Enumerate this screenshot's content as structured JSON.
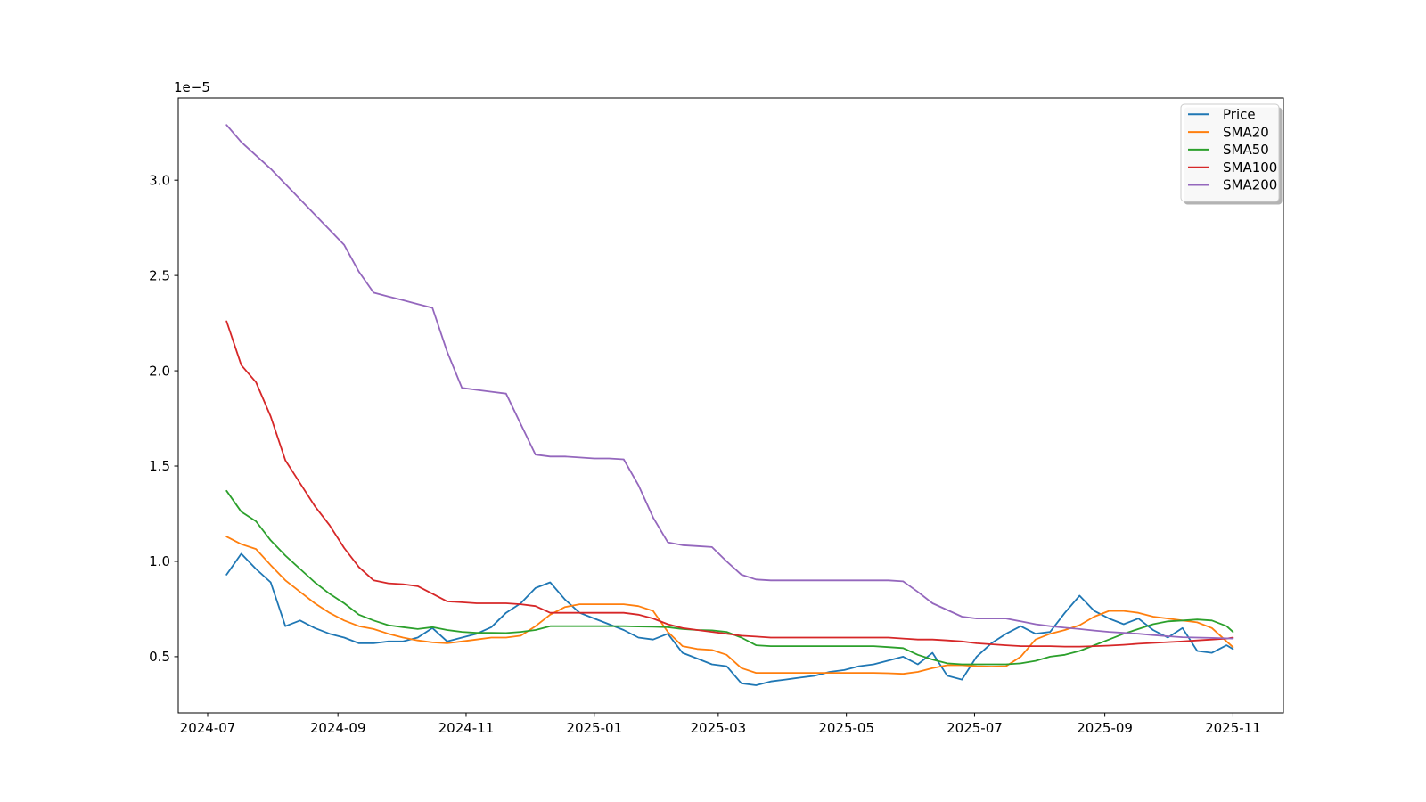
{
  "figure": {
    "background": "#ffffff",
    "axis_color": "#000000",
    "offset_label": "1e−5"
  },
  "legend": {
    "position": "upper right",
    "border_color": "#cccccc",
    "shadow_color": "#b3b3b3",
    "background": "#ffffff"
  },
  "chart_data": {
    "type": "line",
    "title": "",
    "xlabel": "",
    "ylabel": "",
    "grid": false,
    "y_offset_text": "1e−5",
    "ylim": [
      0.205,
      3.431
    ],
    "yticks": [
      0.5,
      1.0,
      1.5,
      2.0,
      2.5,
      3.0
    ],
    "ytick_labels": [
      "0.5",
      "1.0",
      "1.5",
      "2.0",
      "2.5",
      "3.0"
    ],
    "xlim": [
      "2024-06-17",
      "2025-11-25"
    ],
    "xticks": [
      {
        "label": "2024-07",
        "date": "2024-07-01"
      },
      {
        "label": "2024-09",
        "date": "2024-09-01"
      },
      {
        "label": "2024-11",
        "date": "2024-11-01"
      },
      {
        "label": "2025-01",
        "date": "2025-01-01"
      },
      {
        "label": "2025-03",
        "date": "2025-03-01"
      },
      {
        "label": "2025-05",
        "date": "2025-05-01"
      },
      {
        "label": "2025-07",
        "date": "2025-07-01"
      },
      {
        "label": "2025-09",
        "date": "2025-09-01"
      },
      {
        "label": "2025-11",
        "date": "2025-11-01"
      }
    ],
    "dates": [
      "2024-07-10",
      "2024-07-17",
      "2024-07-24",
      "2024-07-31",
      "2024-08-07",
      "2024-08-14",
      "2024-08-21",
      "2024-08-28",
      "2024-09-04",
      "2024-09-11",
      "2024-09-18",
      "2024-09-25",
      "2024-10-02",
      "2024-10-09",
      "2024-10-16",
      "2024-10-23",
      "2024-10-30",
      "2024-11-06",
      "2024-11-13",
      "2024-11-20",
      "2024-11-27",
      "2024-12-04",
      "2024-12-11",
      "2024-12-18",
      "2024-12-25",
      "2025-01-01",
      "2025-01-08",
      "2025-01-15",
      "2025-01-22",
      "2025-01-29",
      "2025-02-05",
      "2025-02-12",
      "2025-02-19",
      "2025-02-26",
      "2025-03-05",
      "2025-03-12",
      "2025-03-19",
      "2025-03-26",
      "2025-04-02",
      "2025-04-09",
      "2025-04-16",
      "2025-04-23",
      "2025-04-30",
      "2025-05-07",
      "2025-05-14",
      "2025-05-21",
      "2025-05-28",
      "2025-06-04",
      "2025-06-11",
      "2025-06-18",
      "2025-06-25",
      "2025-07-02",
      "2025-07-09",
      "2025-07-16",
      "2025-07-23",
      "2025-07-30",
      "2025-08-06",
      "2025-08-13",
      "2025-08-20",
      "2025-08-27",
      "2025-09-03",
      "2025-09-10",
      "2025-09-17",
      "2025-09-24",
      "2025-10-01",
      "2025-10-08",
      "2025-10-15",
      "2025-10-22",
      "2025-10-29",
      "2025-11-01"
    ],
    "value_scale_note": "values are in units of 1e-5, matching y tick labels",
    "series": [
      {
        "name": "Price",
        "color": "#1f77b4",
        "values": [
          0.93,
          1.04,
          0.96,
          0.89,
          0.66,
          0.69,
          0.65,
          0.62,
          0.6,
          0.57,
          0.57,
          0.58,
          0.58,
          0.6,
          0.65,
          0.58,
          0.6,
          0.62,
          0.655,
          0.73,
          0.78,
          0.86,
          0.89,
          0.8,
          0.73,
          0.7,
          0.67,
          0.64,
          0.6,
          0.59,
          0.62,
          0.52,
          0.49,
          0.46,
          0.45,
          0.36,
          0.35,
          0.37,
          0.38,
          0.39,
          0.4,
          0.42,
          0.43,
          0.45,
          0.46,
          0.48,
          0.5,
          0.46,
          0.52,
          0.4,
          0.38,
          0.5,
          0.57,
          0.62,
          0.66,
          0.62,
          0.63,
          0.73,
          0.82,
          0.74,
          0.7,
          0.67,
          0.7,
          0.64,
          0.6,
          0.65,
          0.53,
          0.52,
          0.56,
          0.54
        ]
      },
      {
        "name": "SMA20",
        "color": "#ff7f0e",
        "values": [
          1.13,
          1.09,
          1.065,
          0.98,
          0.9,
          0.84,
          0.78,
          0.73,
          0.69,
          0.66,
          0.645,
          0.62,
          0.6,
          0.585,
          0.575,
          0.57,
          0.58,
          0.59,
          0.6,
          0.6,
          0.61,
          0.66,
          0.72,
          0.76,
          0.775,
          0.775,
          0.775,
          0.775,
          0.765,
          0.74,
          0.63,
          0.555,
          0.54,
          0.535,
          0.51,
          0.44,
          0.415,
          0.415,
          0.415,
          0.415,
          0.415,
          0.415,
          0.415,
          0.415,
          0.415,
          0.413,
          0.41,
          0.42,
          0.44,
          0.455,
          0.455,
          0.45,
          0.448,
          0.45,
          0.5,
          0.59,
          0.62,
          0.64,
          0.665,
          0.71,
          0.74,
          0.74,
          0.73,
          0.71,
          0.7,
          0.69,
          0.68,
          0.65,
          0.58,
          0.55
        ]
      },
      {
        "name": "SMA50",
        "color": "#2ca02c",
        "values": [
          1.37,
          1.26,
          1.21,
          1.11,
          1.03,
          0.96,
          0.89,
          0.83,
          0.78,
          0.72,
          0.69,
          0.665,
          0.655,
          0.645,
          0.655,
          0.64,
          0.63,
          0.625,
          0.625,
          0.624,
          0.63,
          0.64,
          0.66,
          0.66,
          0.66,
          0.66,
          0.66,
          0.66,
          0.658,
          0.657,
          0.655,
          0.645,
          0.64,
          0.638,
          0.63,
          0.6,
          0.56,
          0.555,
          0.555,
          0.555,
          0.555,
          0.555,
          0.555,
          0.555,
          0.555,
          0.55,
          0.545,
          0.51,
          0.485,
          0.465,
          0.46,
          0.46,
          0.46,
          0.46,
          0.465,
          0.478,
          0.5,
          0.51,
          0.53,
          0.56,
          0.59,
          0.62,
          0.645,
          0.67,
          0.685,
          0.69,
          0.695,
          0.69,
          0.66,
          0.63
        ]
      },
      {
        "name": "SMA100",
        "color": "#d62728",
        "values": [
          2.26,
          2.03,
          1.94,
          1.76,
          1.53,
          1.41,
          1.29,
          1.19,
          1.07,
          0.97,
          0.9,
          0.885,
          0.88,
          0.87,
          0.83,
          0.79,
          0.785,
          0.78,
          0.78,
          0.78,
          0.775,
          0.765,
          0.73,
          0.73,
          0.73,
          0.73,
          0.73,
          0.73,
          0.72,
          0.7,
          0.67,
          0.65,
          0.64,
          0.63,
          0.62,
          0.61,
          0.605,
          0.6,
          0.6,
          0.6,
          0.6,
          0.6,
          0.6,
          0.6,
          0.6,
          0.6,
          0.595,
          0.59,
          0.59,
          0.585,
          0.58,
          0.57,
          0.565,
          0.56,
          0.555,
          0.555,
          0.555,
          0.553,
          0.553,
          0.555,
          0.558,
          0.562,
          0.568,
          0.572,
          0.576,
          0.58,
          0.585,
          0.59,
          0.595,
          0.6
        ]
      },
      {
        "name": "SMA200",
        "color": "#9467bd",
        "values": [
          3.29,
          3.2,
          3.13,
          3.06,
          2.98,
          2.9,
          2.82,
          2.74,
          2.66,
          2.52,
          2.41,
          2.39,
          2.37,
          2.35,
          2.33,
          2.1,
          1.91,
          1.9,
          1.89,
          1.88,
          1.72,
          1.56,
          1.55,
          1.55,
          1.545,
          1.54,
          1.54,
          1.535,
          1.4,
          1.23,
          1.1,
          1.085,
          1.08,
          1.075,
          1.0,
          0.93,
          0.905,
          0.9,
          0.9,
          0.9,
          0.9,
          0.9,
          0.9,
          0.9,
          0.9,
          0.9,
          0.895,
          0.84,
          0.78,
          0.745,
          0.71,
          0.7,
          0.7,
          0.7,
          0.685,
          0.67,
          0.66,
          0.652,
          0.645,
          0.637,
          0.63,
          0.625,
          0.62,
          0.613,
          0.607,
          0.602,
          0.6,
          0.598,
          0.596,
          0.595
        ]
      }
    ],
    "legend_entries": [
      "Price",
      "SMA20",
      "SMA50",
      "SMA100",
      "SMA200"
    ]
  }
}
